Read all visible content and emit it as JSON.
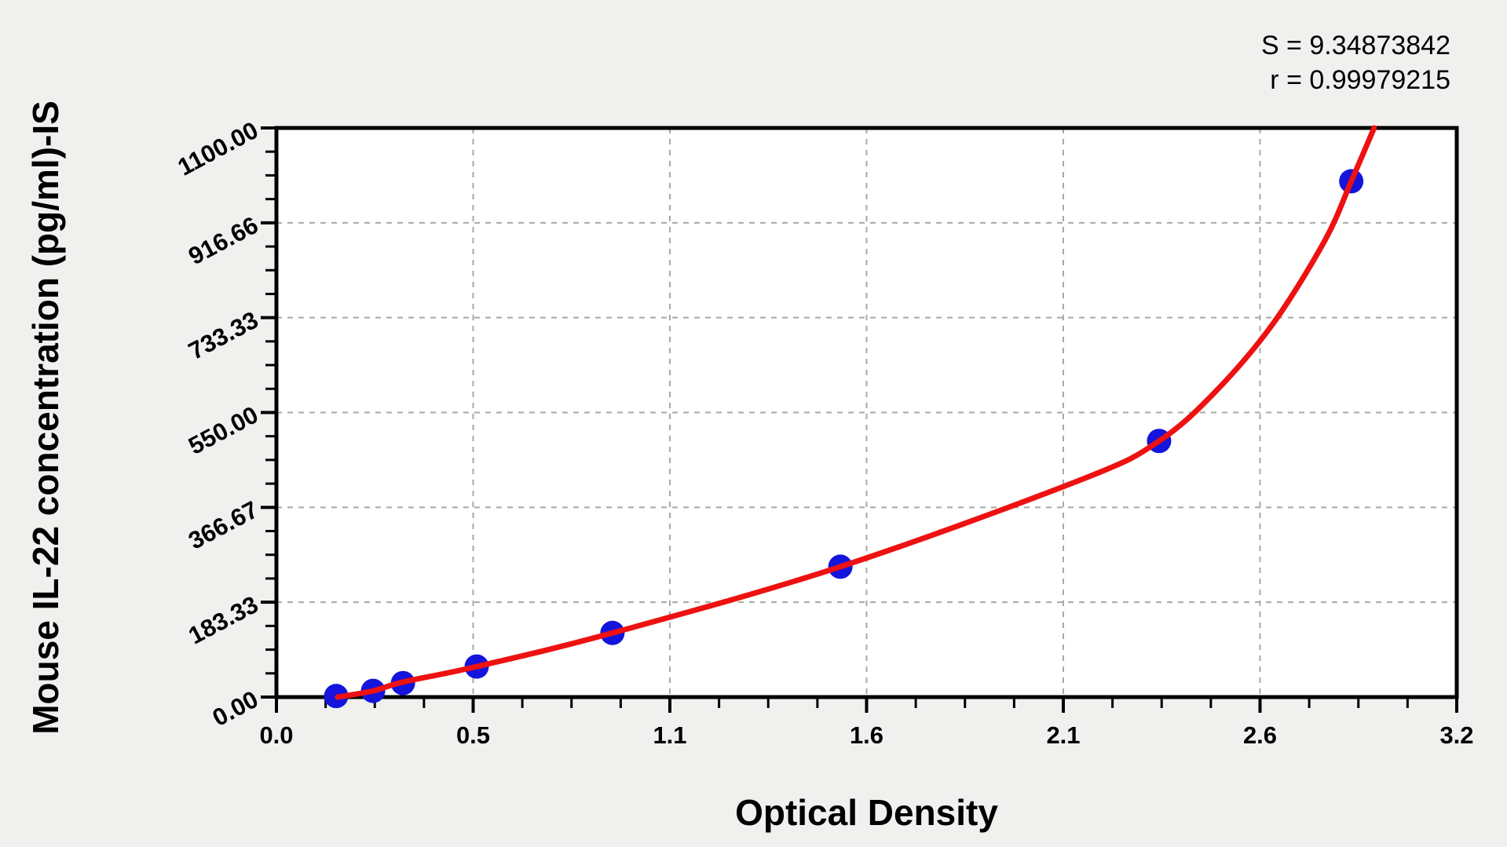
{
  "stats": {
    "s_line": "S = 9.34873842",
    "r_line": "r = 0.99979215"
  },
  "colors": {
    "background": "#f0f0ee",
    "plot_background": "#ffffff",
    "axis": "#000000",
    "grid": "#a8a8a8",
    "points": "#1414dd",
    "curve": "#ee1111",
    "text": "#000000"
  },
  "chart_data": {
    "type": "scatter",
    "title": "",
    "xlabel": "Optical Density",
    "ylabel": "Mouse IL-22 concentration (pg/ml)-IS",
    "xlim": [
      0,
      3.2
    ],
    "ylim": [
      0,
      1100
    ],
    "x_tick_labels": [
      "0.0",
      "0.5",
      "1.1",
      "1.6",
      "2.1",
      "2.6",
      "3.2"
    ],
    "y_tick_labels": [
      "0.00",
      "183.33",
      "366.67",
      "550.00",
      "733.33",
      "916.66",
      "1100.00"
    ],
    "minor_ticks_per_interval": 4,
    "grid": "dashed lines at major ticks",
    "legend_position": "none",
    "annotations": [
      "S = 9.34873842",
      "r = 0.99979215"
    ],
    "series": [
      {
        "name": "standard-points",
        "type": "scatter",
        "color": "#1414dd",
        "points": [
          [
            0.162,
            2
          ],
          [
            0.262,
            12
          ],
          [
            0.343,
            27
          ],
          [
            0.543,
            59
          ],
          [
            0.911,
            124
          ],
          [
            1.529,
            252
          ],
          [
            2.393,
            495
          ],
          [
            2.914,
            997
          ]
        ]
      },
      {
        "name": "fitted-curve",
        "type": "line",
        "color": "#ee1111",
        "points": [
          [
            0.166,
            0
          ],
          [
            0.262,
            12
          ],
          [
            0.343,
            29
          ],
          [
            0.543,
            59
          ],
          [
            0.911,
            124
          ],
          [
            1.529,
            252
          ],
          [
            2.188,
            422
          ],
          [
            2.393,
            495
          ],
          [
            2.544,
            589
          ],
          [
            2.7,
            720
          ],
          [
            2.842,
            882
          ],
          [
            2.914,
            997
          ],
          [
            2.976,
            1100
          ]
        ]
      }
    ]
  }
}
